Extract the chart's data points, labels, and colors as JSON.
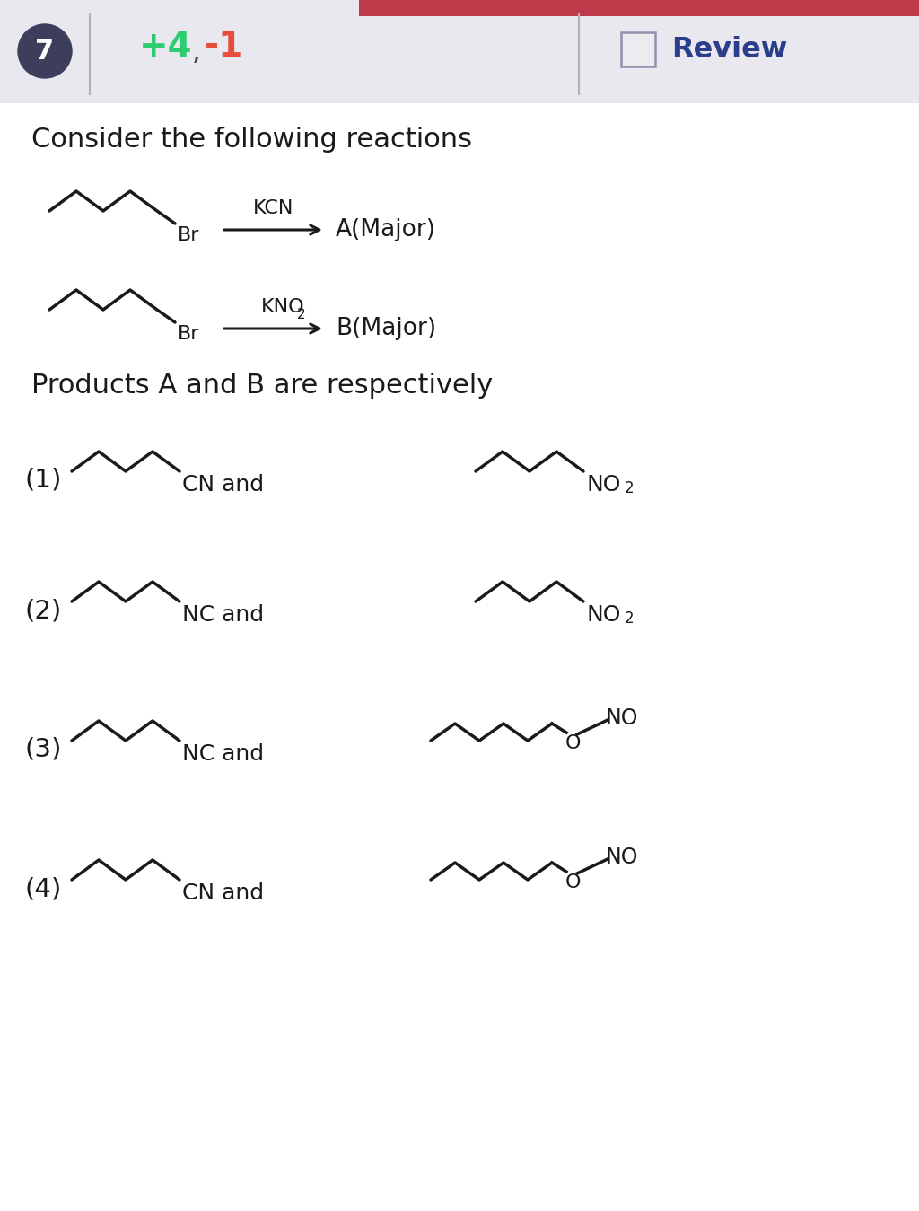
{
  "bg_color": "#f0f0f5",
  "white_bg": "#ffffff",
  "header_bg": "#e8e8ee",
  "circle_color": "#3d3d5c",
  "circle_text": "7",
  "circle_text_color": "#ffffff",
  "plus4_color": "#2ecc71",
  "minus1_color": "#e74c3c",
  "review_text": "Review",
  "review_color": "#2c3e8a",
  "question_text": "Consider the following reactions",
  "products_text": "Products A and B are respectively",
  "text_color": "#1a1a1a",
  "line_color": "#1a1a1a",
  "lw": 2.5
}
